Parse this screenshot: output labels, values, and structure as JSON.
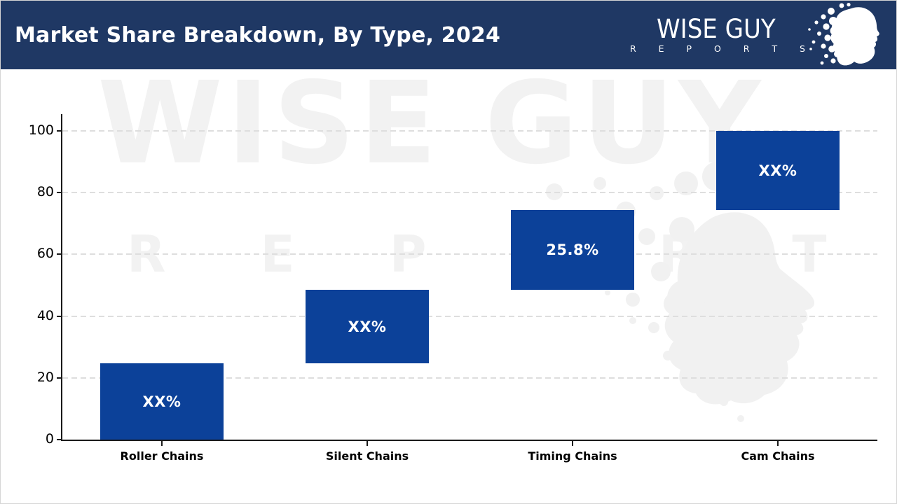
{
  "header": {
    "title": "Market Share Breakdown, By Type, 2024",
    "bg_color": "#1f3864",
    "logo": {
      "line1": "WISE GUY",
      "line2": "R E P O R T S",
      "face_icon": "dotted-head-profile"
    }
  },
  "watermark": {
    "line1": "WISE GUY",
    "line2": "R E P O R T S",
    "head_icon": "dotted-head-profile"
  },
  "chart_data": {
    "type": "bar",
    "subtype": "waterfall",
    "title": "Market Share Breakdown, By Type, 2024",
    "xlabel": "",
    "ylabel": "",
    "categories": [
      "Roller Chains",
      "Silent Chains",
      "Timing Chains",
      "Cam Chains"
    ],
    "segments": [
      {
        "category": "Roller Chains",
        "start": 0,
        "end": 24.7,
        "label": "XX%"
      },
      {
        "category": "Silent Chains",
        "start": 24.7,
        "end": 48.5,
        "label": "XX%"
      },
      {
        "category": "Timing Chains",
        "start": 48.5,
        "end": 74.3,
        "label": "25.8%"
      },
      {
        "category": "Cam Chains",
        "start": 74.3,
        "end": 100,
        "label": "XX%"
      }
    ],
    "ylim": [
      0,
      100
    ],
    "yticks": [
      0,
      20,
      40,
      60,
      80,
      100
    ],
    "grid": "horizontal-dashed",
    "legend": "none",
    "bar_color": "#0c4199",
    "bar_label_color": "#ffffff",
    "axis_color": "#1a1a1a"
  }
}
